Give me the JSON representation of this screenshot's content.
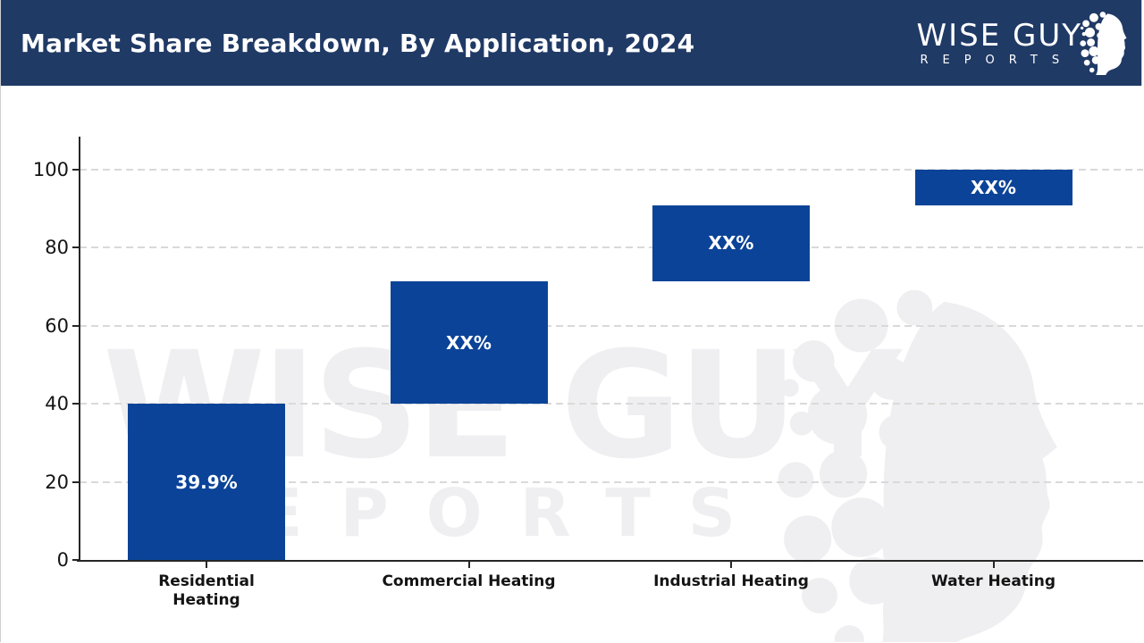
{
  "header": {
    "title": "Market Share Breakdown, By Application, 2024",
    "logo": {
      "name": "WISE GUY",
      "sub": "REPORTS"
    }
  },
  "watermark": {
    "line1": "WISE GUY",
    "line2": "REPORTS"
  },
  "chart_data": {
    "type": "bar",
    "variant": "floating-segment-waterfall",
    "title": "Market Share Breakdown, By Application, 2024",
    "categories": [
      {
        "lines": [
          "Residential",
          "Heating"
        ]
      },
      {
        "lines": [
          "Commercial Heating"
        ]
      },
      {
        "lines": [
          "Industrial Heating"
        ]
      },
      {
        "lines": [
          "Water Heating"
        ]
      }
    ],
    "segments": [
      {
        "category": "Residential Heating",
        "start": 0,
        "end": 39.9,
        "value": 39.9,
        "label": "39.9%"
      },
      {
        "category": "Commercial Heating",
        "start": 39.9,
        "end": 71.4,
        "value": 31.5,
        "label": "XX%"
      },
      {
        "category": "Industrial Heating",
        "start": 71.4,
        "end": 90.7,
        "value": 19.3,
        "label": "XX%"
      },
      {
        "category": "Water Heating",
        "start": 90.7,
        "end": 100,
        "value": 9.3,
        "label": "XX%"
      }
    ],
    "ylim": [
      0,
      100
    ],
    "yticks": [
      0,
      20,
      40,
      60,
      80,
      100
    ],
    "xlabel": "",
    "ylabel": "",
    "grid": true,
    "legend": null,
    "bar_color": "#0b4398"
  },
  "colors": {
    "header_bg": "#203a66",
    "bar": "#0b4398",
    "axis": "#262626",
    "grid": "#d9d9d9",
    "watermark": "#efeff1",
    "bar_label": "#ffffff",
    "title_text": "#ffffff"
  }
}
